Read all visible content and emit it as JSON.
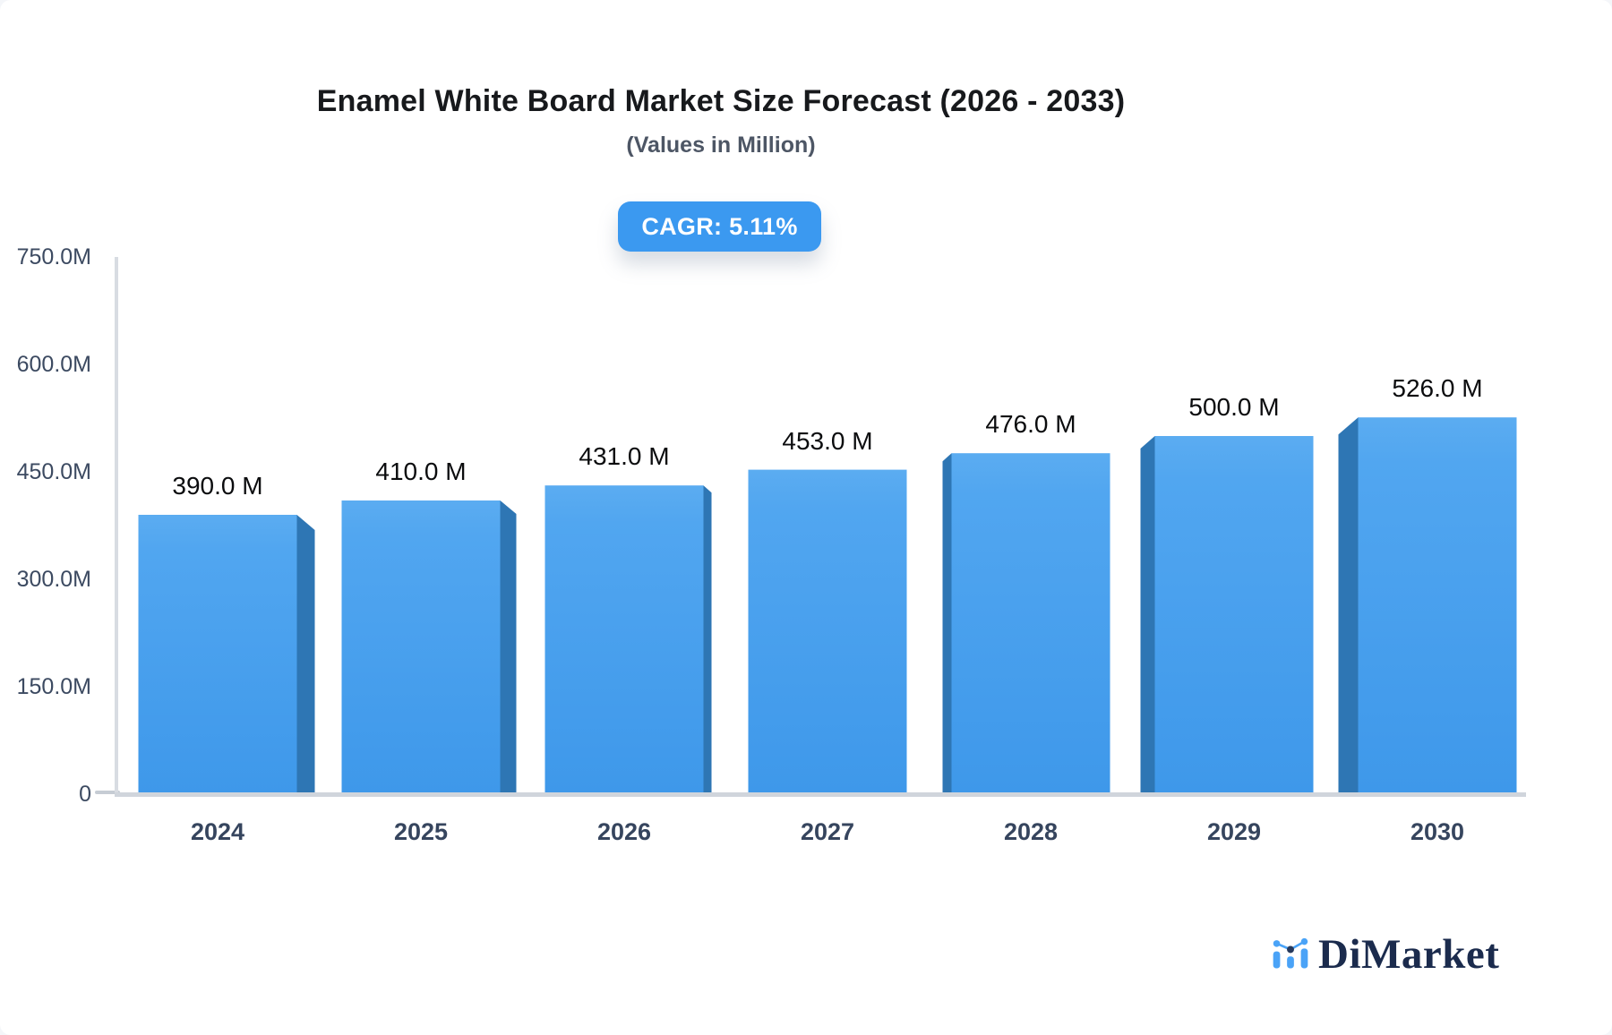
{
  "header": {
    "title": "Enamel White Board Market Size Forecast (2026 - 2033)",
    "subtitle": "(Values in Million)",
    "cagr_label": "CAGR: 5.11%"
  },
  "chart_data": {
    "type": "bar",
    "title": "Enamel White Board Market Size Forecast (2026 - 2033)",
    "subtitle": "(Values in Million)",
    "cagr_pct": 5.11,
    "unit": "Million",
    "categories": [
      "2024",
      "2025",
      "2026",
      "2027",
      "2028",
      "2029",
      "2030"
    ],
    "values": [
      390.0,
      410.0,
      431.0,
      453.0,
      476.0,
      500.0,
      526.0
    ],
    "value_labels": [
      "390.0 M",
      "410.0 M",
      "431.0 M",
      "453.0 M",
      "476.0 M",
      "500.0 M",
      "526.0 M"
    ],
    "xlabel": "",
    "ylabel": "",
    "ylim": [
      0,
      750
    ],
    "y_ticks": [
      {
        "value": 750,
        "label": "750.0M"
      },
      {
        "value": 600,
        "label": "600.0M"
      },
      {
        "value": 450,
        "label": "450.0M"
      },
      {
        "value": 300,
        "label": "300.0M"
      },
      {
        "value": 150,
        "label": "150.0M"
      },
      {
        "value": 0,
        "label": "0"
      }
    ],
    "grid": false,
    "legend": "none",
    "style": "pseudo-3d bars, central vanishing point"
  },
  "colors": {
    "accent_blue": "#3b99f0",
    "bar_face_top": "#5bacf1",
    "bar_face_bottom": "#3e98ea",
    "bar_side": "#2e76b4",
    "axis_gray": "#d5d9e0",
    "tick_text": "#3c4a61",
    "brand_navy": "#1b2b4d",
    "logo_blue": "#4aa3f7"
  },
  "footer": {
    "brand": "DiMarket"
  }
}
